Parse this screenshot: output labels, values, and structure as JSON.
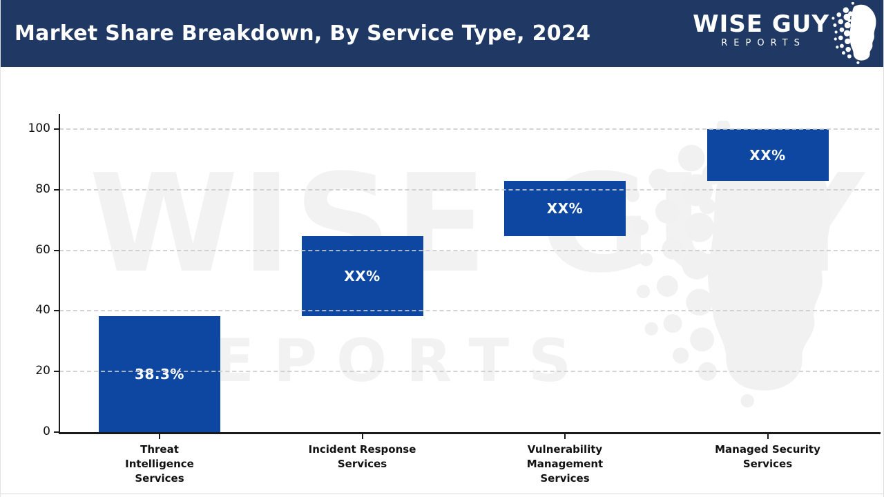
{
  "header": {
    "title": "Market Share Breakdown, By Service Type, 2024",
    "background_color": "#1f3864",
    "logo": {
      "line1": "WISE GUY",
      "line2": "REPORTS",
      "head_icon": "dotted-head-profile"
    }
  },
  "watermark": {
    "line1": "WISE GUY",
    "line2": "REPORTS",
    "head_icon": "dotted-head-profile"
  },
  "chart_data": {
    "type": "bar",
    "subtype": "waterfall",
    "title": "Market Share Breakdown, By Service Type, 2024",
    "categories": [
      {
        "name": "Threat Intelligence Services",
        "lines": [
          "Threat",
          "Intelligence",
          "Services"
        ]
      },
      {
        "name": "Incident Response Services",
        "lines": [
          "Incident Response",
          "Services"
        ]
      },
      {
        "name": "Vulnerability Management Services",
        "lines": [
          "Vulnerability",
          "Management",
          "Services"
        ]
      },
      {
        "name": "Managed Security Services",
        "lines": [
          "Managed Security",
          "Services"
        ]
      }
    ],
    "segments": [
      {
        "category": "Threat Intelligence Services",
        "start": 0,
        "end": 38.3,
        "label": "38.3%"
      },
      {
        "category": "Incident Response Services",
        "start": 38.3,
        "end": 64.6,
        "label": "XX%"
      },
      {
        "category": "Vulnerability Management Services",
        "start": 64.6,
        "end": 82.9,
        "label": "XX%"
      },
      {
        "category": "Managed Security Services",
        "start": 82.9,
        "end": 100,
        "label": "XX%"
      }
    ],
    "ylim": [
      0,
      100
    ],
    "yticks": [
      0,
      20,
      40,
      60,
      80,
      100
    ],
    "grid": {
      "axis": "y",
      "style": "dashed",
      "drawn_above_bars": true
    },
    "legend": "none",
    "xlabel": "",
    "ylabel": "",
    "bar_color": "#0d47a1",
    "bar_label_color": "#ffffff",
    "axis_color": "#1a1a1a"
  }
}
